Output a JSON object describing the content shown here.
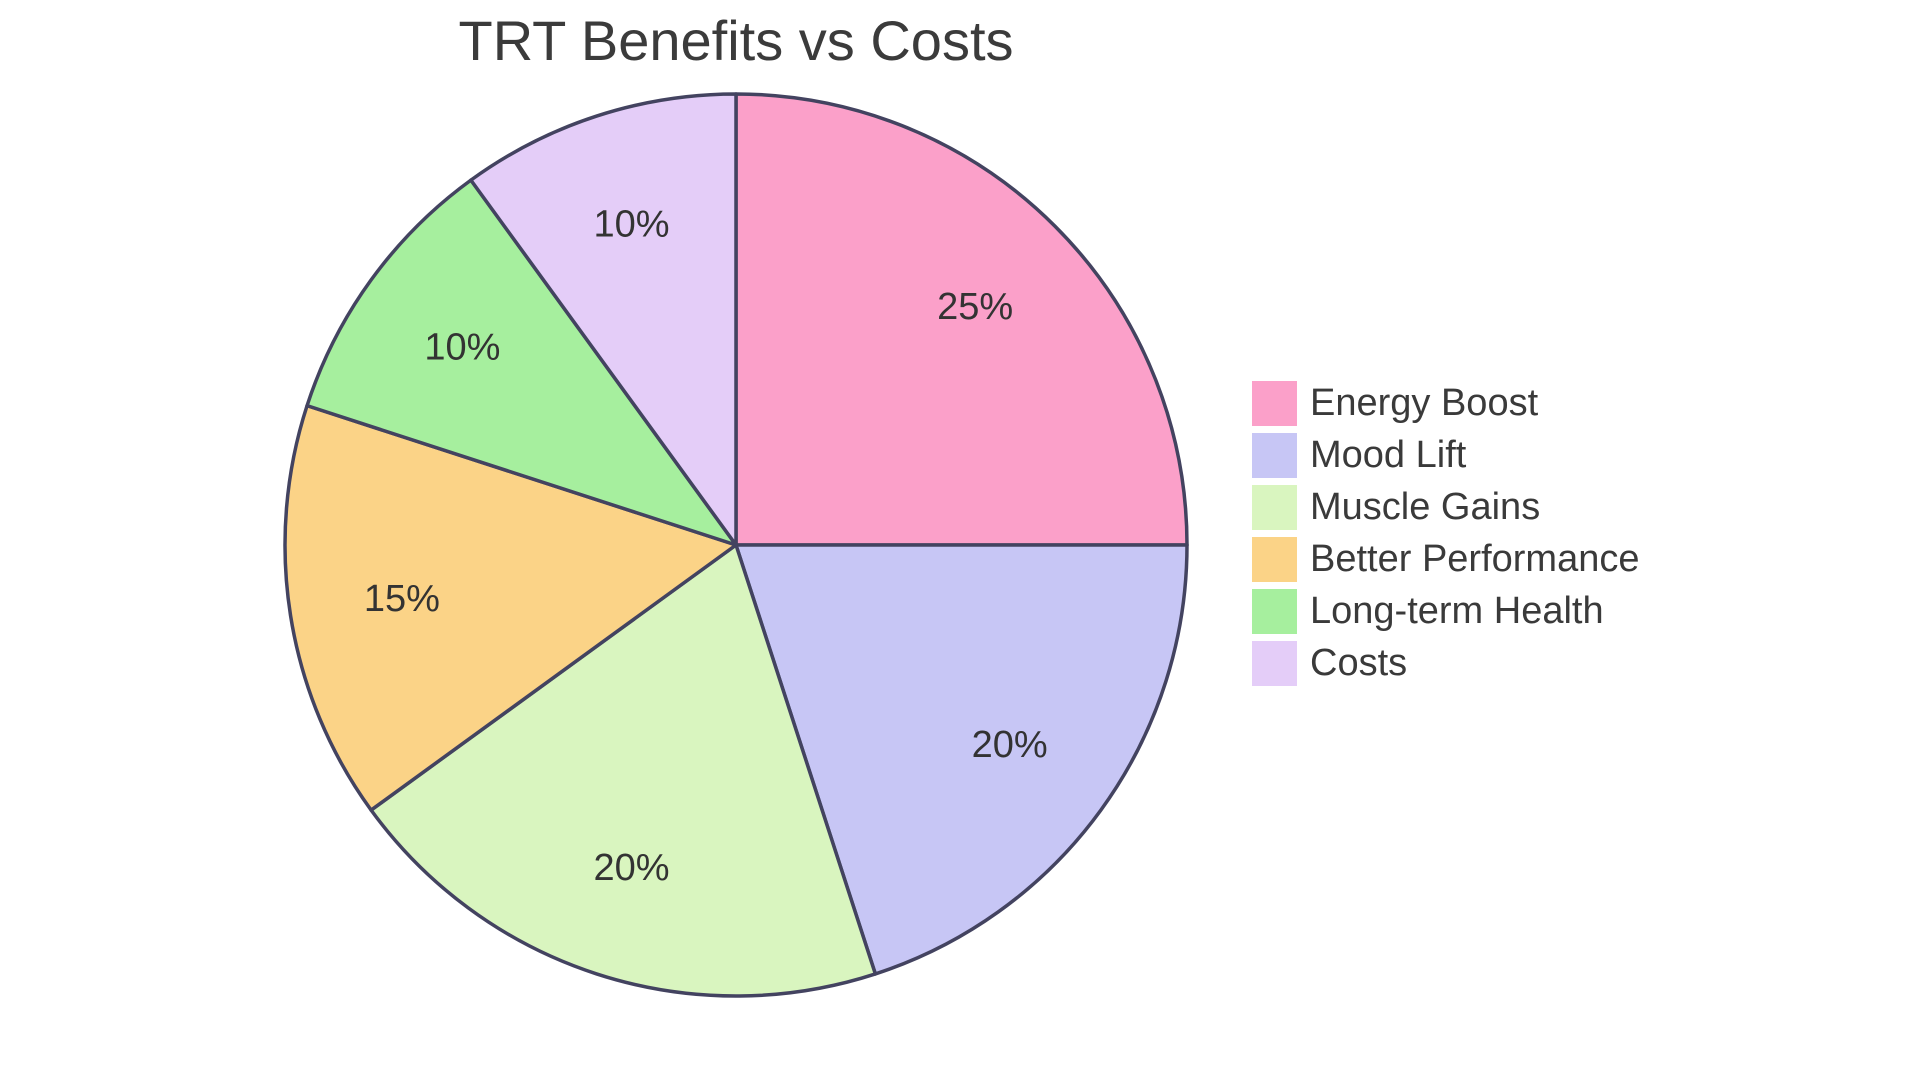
{
  "title": "TRT Benefits vs Costs",
  "chart_data": {
    "type": "pie",
    "title": "TRT Benefits vs Costs",
    "start_angle_deg": 0,
    "direction": "clockwise",
    "legend_position": "right",
    "background_color": "#ffffff",
    "slice_border_color": "#434360",
    "percent_label_color": "#333333",
    "title_color": "#3b3b3b",
    "legend_text_color": "#3a3a3a",
    "slices": [
      {
        "label": "Energy Boost",
        "value": 25,
        "pct_label": "25%",
        "color": "#FBA0C9"
      },
      {
        "label": "Mood Lift",
        "value": 20,
        "pct_label": "20%",
        "color": "#C7C6F5"
      },
      {
        "label": "Muscle Gains",
        "value": 20,
        "pct_label": "20%",
        "color": "#D9F5BF"
      },
      {
        "label": "Better Performance",
        "value": 15,
        "pct_label": "15%",
        "color": "#FBD387"
      },
      {
        "label": "Long-term Health",
        "value": 10,
        "pct_label": "10%",
        "color": "#A6EF9E"
      },
      {
        "label": "Costs",
        "value": 10,
        "pct_label": "10%",
        "color": "#E4CDF8"
      }
    ]
  }
}
